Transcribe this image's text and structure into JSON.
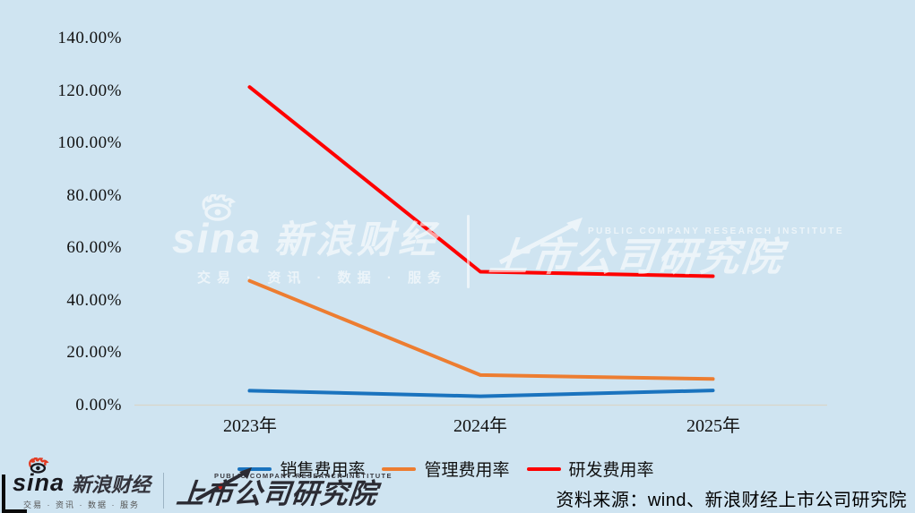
{
  "colors": {
    "background": "#cfe4f1",
    "axis_line": "#d9d5c9",
    "tick_text": "#111111"
  },
  "chart_data": {
    "type": "line",
    "categories": [
      "2023年",
      "2024年",
      "2025年"
    ],
    "series": [
      {
        "name": "销售费用率",
        "color": "#1a73be",
        "values": [
          5.5,
          3.4,
          5.6
        ]
      },
      {
        "name": "管理费用率",
        "color": "#ED7D31",
        "values": [
          47.5,
          11.5,
          10.0
        ]
      },
      {
        "name": "研发费用率",
        "color": "#FE0000",
        "values": [
          121.6,
          51.0,
          49.3
        ]
      }
    ],
    "ylim": [
      0,
      140
    ],
    "ytick_step": 20,
    "ytick_labels": [
      "0.00%",
      "20.00%",
      "40.00%",
      "60.00%",
      "80.00%",
      "100.00%",
      "120.00%",
      "140.00%"
    ],
    "grid": false,
    "legend_position": "bottom"
  },
  "watermark": {
    "sina_text": "sina",
    "brand_text": "新浪财经",
    "tagline": "交易 · 资讯 · 数据 · 服务",
    "institute_en": "PUBLIC COMPANY RESEARCH INSTITUTE",
    "institute_text": "上市公司研究院"
  },
  "footer": {
    "sina_logo_text": "sina",
    "sina_brand": "新浪财经",
    "sina_tagline": "交易 · 资讯 · 数据 · 服务",
    "institute_en": "PUBLIC COMPANY RESEARCH INSTITUTE",
    "institute_text": "上市公司研究院",
    "source_text": "资料来源：wind、新浪财经上市公司研究院"
  }
}
